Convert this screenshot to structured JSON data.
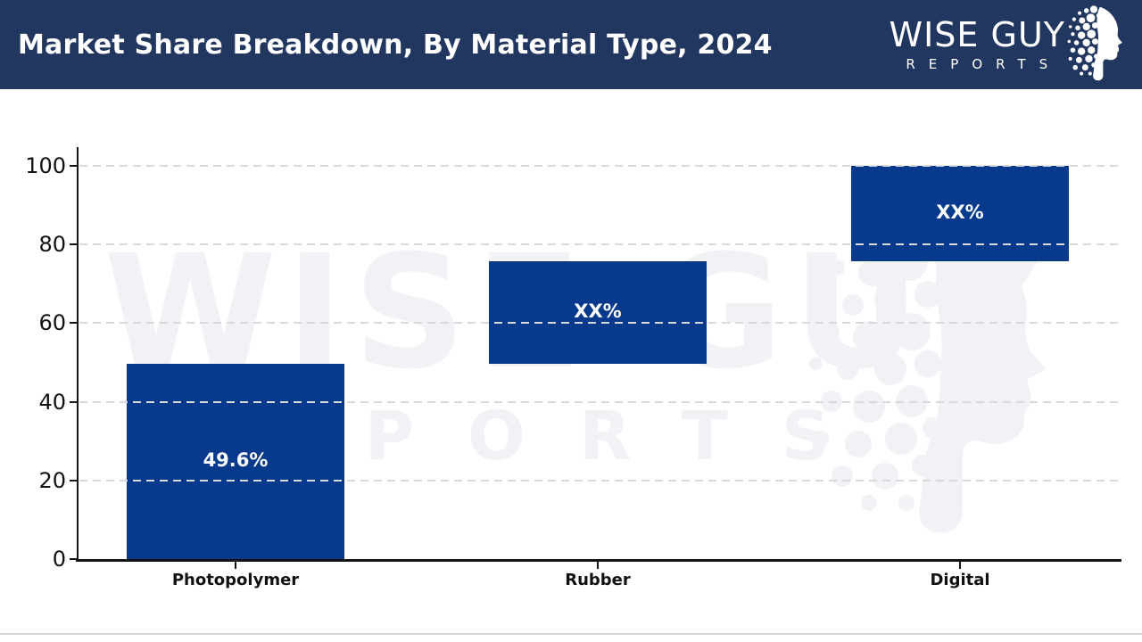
{
  "header": {
    "title": "Market Share Breakdown, By Material Type, 2024",
    "logo": {
      "line1": "WISE GUY",
      "line2": "REPORTS",
      "icon": "wiseguy-face-icon"
    }
  },
  "watermark": {
    "line1": "WISE GUY",
    "line2": "REPORTS",
    "icon": "watermark-face-icon"
  },
  "chart_data": {
    "type": "bar",
    "subtype": "waterfall",
    "title": "Market Share Breakdown, By Material Type, 2024",
    "categories": [
      "Photopolymer",
      "Rubber",
      "Digital"
    ],
    "segments": [
      {
        "category": "Photopolymer",
        "start": 0,
        "end": 49.6,
        "label": "49.6%"
      },
      {
        "category": "Rubber",
        "start": 49.6,
        "end": 75.7,
        "label": "XX%"
      },
      {
        "category": "Digital",
        "start": 75.7,
        "end": 100,
        "label": "XX%"
      }
    ],
    "xlabel": "",
    "ylabel": "",
    "ylim": [
      0,
      105
    ],
    "yticks": [
      0,
      20,
      40,
      60,
      80,
      100
    ],
    "grid": "dashed-horizontal-over-bars",
    "legend": "none",
    "colors": {
      "bar": "#073A8C",
      "bar_label": "#FFFFFF",
      "grid": "#D9D9D9",
      "axis": "#141414",
      "header_bg": "#22375F",
      "header_text": "#FFFFFF",
      "watermark": "#F1F2F5"
    }
  }
}
